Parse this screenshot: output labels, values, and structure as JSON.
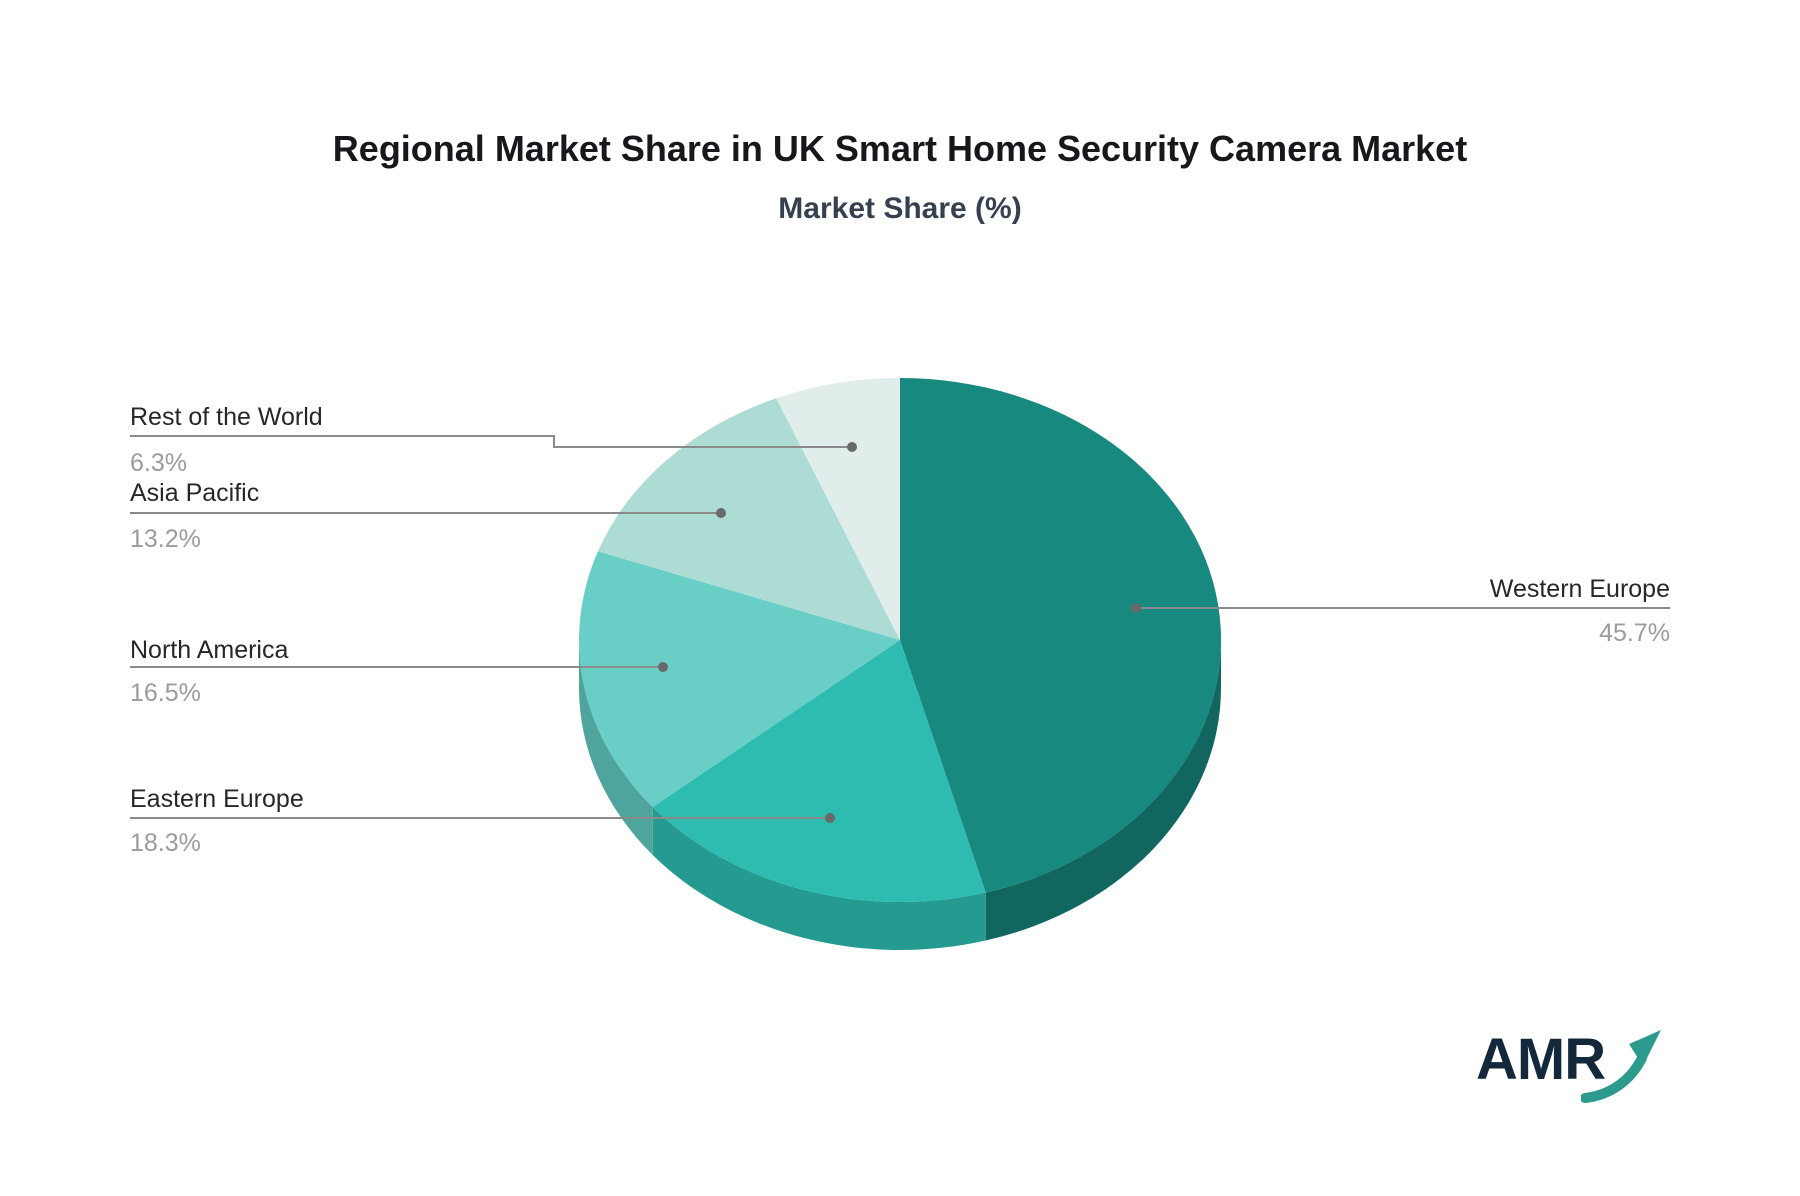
{
  "header": {
    "title": "Regional Market Share in UK Smart Home Security Camera Market",
    "subtitle": "Market Share (%)"
  },
  "chart_data": {
    "type": "pie",
    "title": "Regional Market Share in UK Smart Home Security Camera Market",
    "subtitle": "Market Share (%)",
    "unit": "%",
    "style": "3d-pie",
    "direction": "clockwise",
    "start_angle_deg": 0,
    "legend_position": "none",
    "slices": [
      {
        "label": "Western Europe",
        "value": 45.7,
        "percent_label": "45.7%",
        "color": "#18897f",
        "depth_color": "#116760"
      },
      {
        "label": "Eastern Europe",
        "value": 18.3,
        "percent_label": "18.3%",
        "color": "#2ebcb1",
        "depth_color": "#259a90"
      },
      {
        "label": "North America",
        "value": 16.5,
        "percent_label": "16.5%",
        "color": "#69cfc6",
        "depth_color": "#4fa59d"
      },
      {
        "label": "Asia Pacific",
        "value": 13.2,
        "percent_label": "13.2%",
        "color": "#addcd5",
        "depth_color": "#8cb8b2"
      },
      {
        "label": "Rest of the World",
        "value": 6.3,
        "percent_label": "6.3%",
        "color": "#e0edeb",
        "depth_color": "#c2d4d1"
      }
    ],
    "leader_line_color": "#8a8a8a",
    "leader_dot_color": "#696969",
    "label_text_color": "#272727",
    "percent_text_color": "#9b9b9b"
  },
  "branding": {
    "logo_text": "AMR",
    "logo_text_color": "#13283a",
    "logo_arrow_color": "#2d9a8e"
  }
}
